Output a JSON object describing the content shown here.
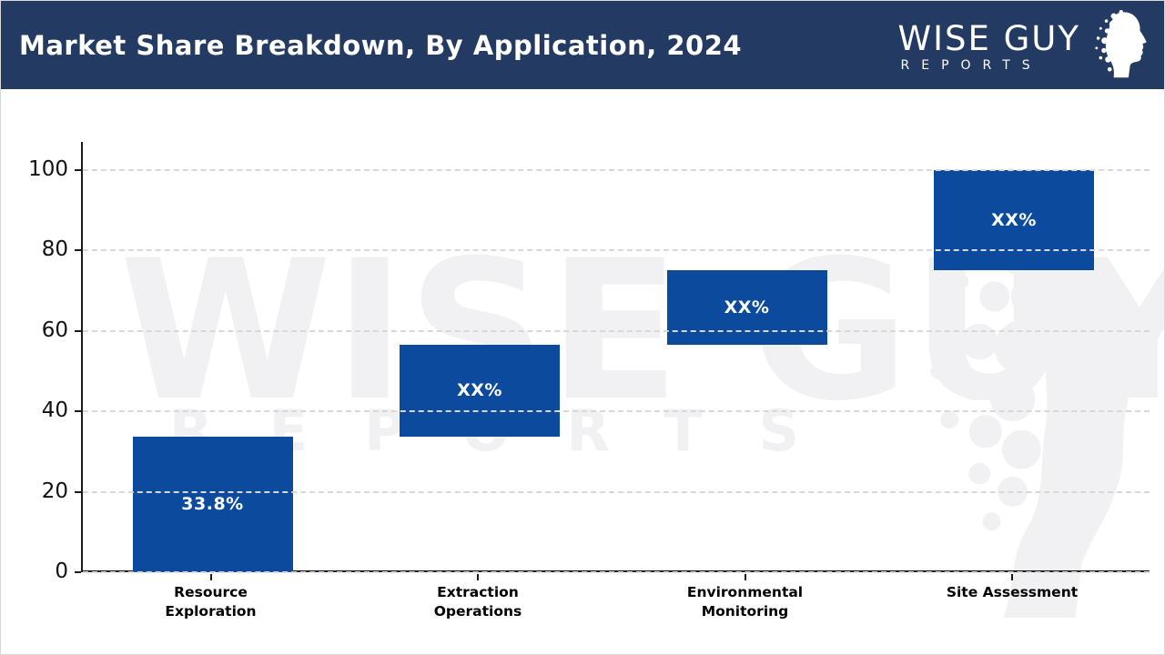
{
  "header": {
    "title": "Market Share Breakdown, By Application, 2024"
  },
  "logo": {
    "line1": "WISE GUY",
    "line2": "REPORTS"
  },
  "watermark": {
    "line1": "WISE GUY",
    "line2": "REPORTS"
  },
  "colors": {
    "header_navy": "#233a62",
    "bar_blue": "#0c4a9e",
    "gridline": "#d8d8d8",
    "watermark": "#f1f1f4",
    "bar_label_text": "#ffffff"
  },
  "chart_data": {
    "type": "bar",
    "subtype": "stacked-waterfall",
    "title": "Market Share Breakdown, By Application, 2024",
    "xlabel": "",
    "ylabel": "",
    "ylim": [
      0,
      100
    ],
    "yticks": [
      0,
      20,
      40,
      60,
      80,
      100
    ],
    "grid": "horizontal-dashed",
    "categories": [
      [
        "Resource",
        "Exploration"
      ],
      [
        "Extraction",
        "Operations"
      ],
      [
        "Environmental",
        "Monitoring"
      ],
      [
        "Site Assessment"
      ]
    ],
    "segments": [
      {
        "category": "Resource Exploration",
        "start": 0,
        "end": 33.8,
        "label": "33.8%"
      },
      {
        "category": "Extraction Operations",
        "start": 33.8,
        "end": 56.5,
        "label": "XX%"
      },
      {
        "category": "Environmental Monitoring",
        "start": 56.5,
        "end": 75.2,
        "label": "XX%"
      },
      {
        "category": "Site Assessment",
        "start": 75.2,
        "end": 100,
        "label": "XX%"
      }
    ]
  }
}
